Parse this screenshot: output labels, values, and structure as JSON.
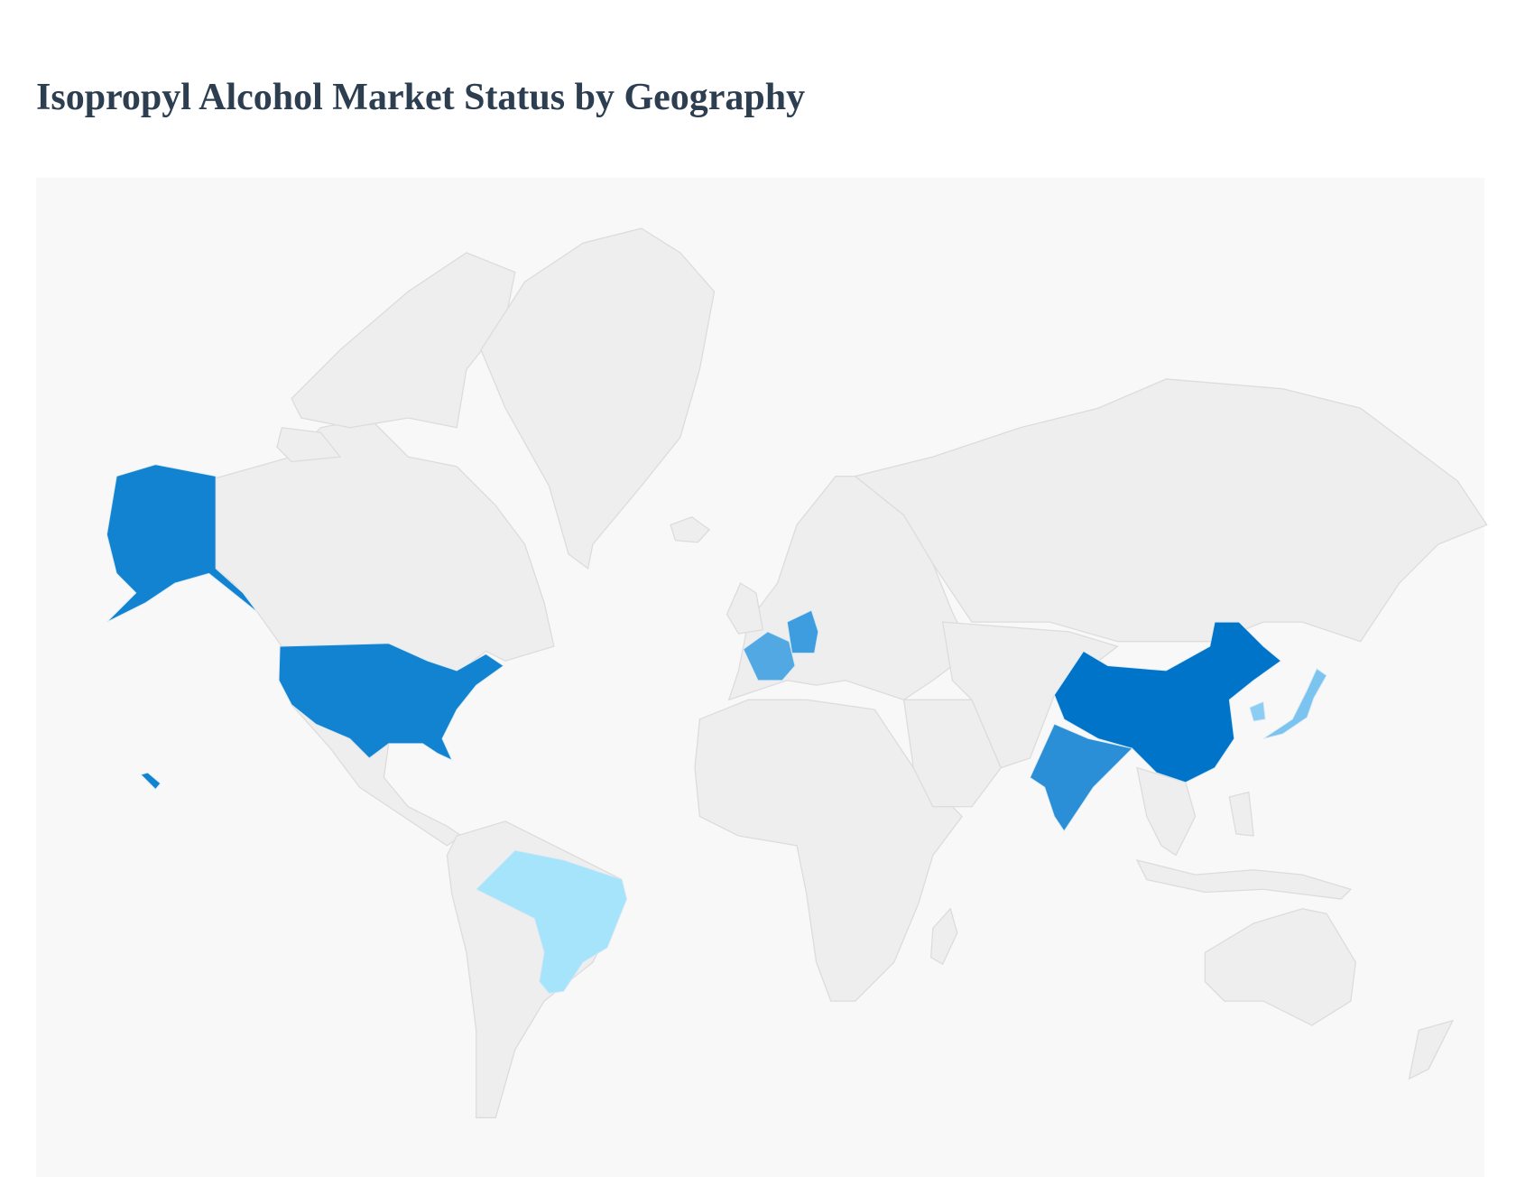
{
  "title": "Isopropyl Alcohol Market Status by Geography",
  "map": {
    "background_color": "#f8f8f8",
    "land_color": "#eeeeee",
    "border_color": "#dcdcdc",
    "highlighted_countries": [
      {
        "id": "china",
        "name": "China",
        "color": "#0074c8"
      },
      {
        "id": "usa",
        "name": "United States",
        "color": "#1283d0"
      },
      {
        "id": "india",
        "name": "India",
        "color": "#2a8fd6"
      },
      {
        "id": "germany",
        "name": "Germany",
        "color": "#3e9ddf"
      },
      {
        "id": "france",
        "name": "France",
        "color": "#52a8e3"
      },
      {
        "id": "japan",
        "name": "Japan",
        "color": "#7cc4f0"
      },
      {
        "id": "south_korea",
        "name": "South Korea",
        "color": "#8ccdf3"
      },
      {
        "id": "brazil",
        "name": "Brazil",
        "color": "#a6e4fc"
      }
    ]
  }
}
